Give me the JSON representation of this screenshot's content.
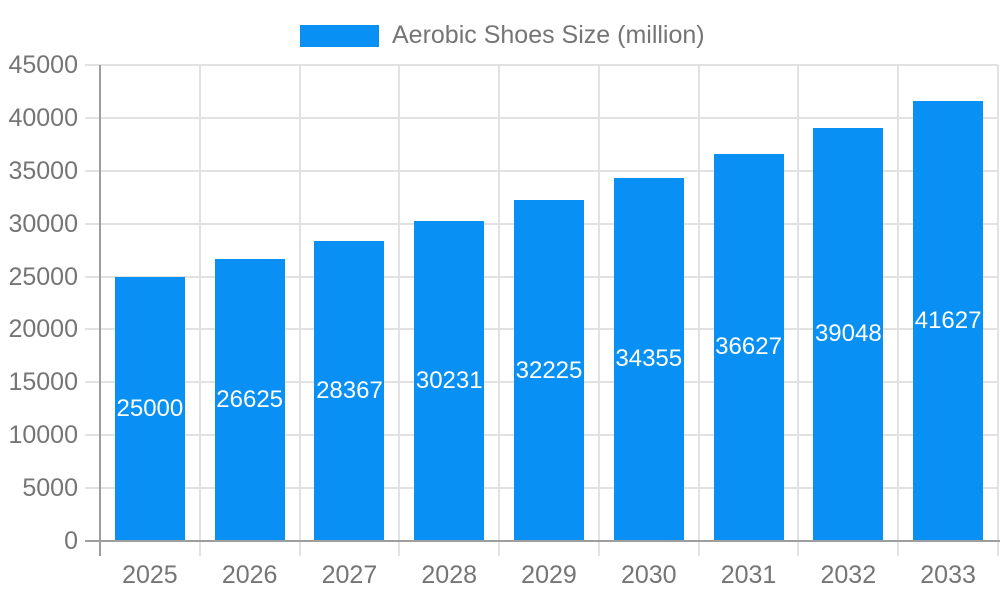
{
  "colors": {
    "bar": "#0990f5",
    "grid": "#e2e2e2",
    "axis": "#9e9e9e",
    "text": "#757575",
    "bar_label": "#ffffff",
    "background": "#ffffff"
  },
  "legend": {
    "label": "Aerobic Shoes Size (million)",
    "position": "top"
  },
  "chart_data": {
    "type": "bar",
    "title": "Aerobic Shoes Size (million)",
    "categories": [
      "2025",
      "2026",
      "2027",
      "2028",
      "2029",
      "2030",
      "2031",
      "2032",
      "2033"
    ],
    "values": [
      25000,
      26625,
      28367,
      30231,
      32225,
      34355,
      36627,
      39048,
      41627
    ],
    "series": [
      {
        "name": "Aerobic Shoes Size (million)",
        "values": [
          25000,
          26625,
          28367,
          30231,
          32225,
          34355,
          36627,
          39048,
          41627
        ]
      }
    ],
    "xlabel": "",
    "ylabel": "",
    "ylim": [
      0,
      45000
    ],
    "yticks": [
      0,
      5000,
      10000,
      15000,
      20000,
      25000,
      30000,
      35000,
      40000,
      45000
    ],
    "grid": true,
    "legend_position": "top",
    "value_label_position": "inside-middle"
  }
}
